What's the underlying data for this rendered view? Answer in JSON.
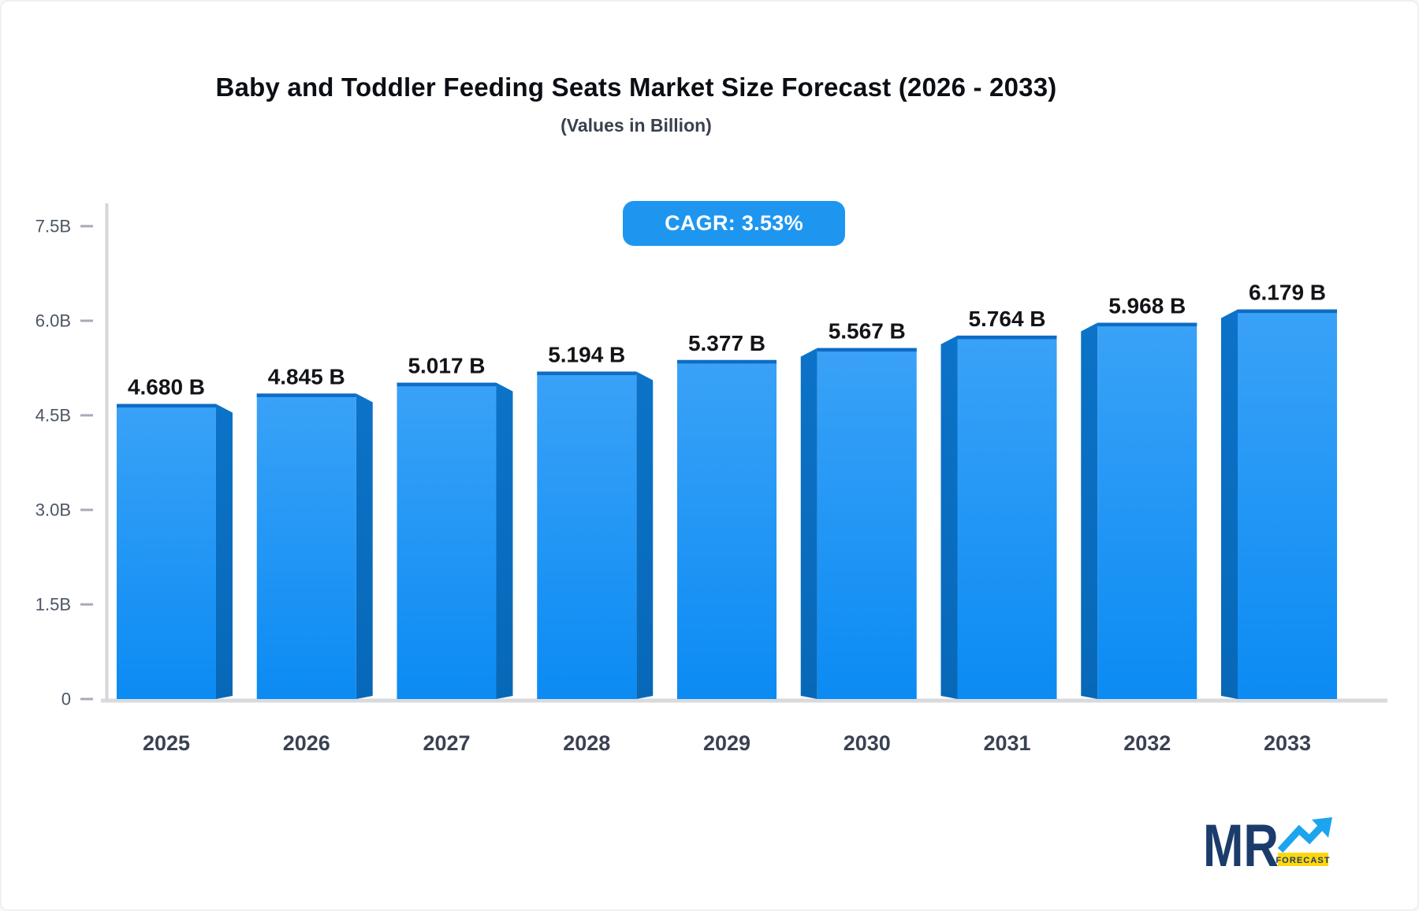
{
  "header": {
    "title": "Baby and Toddler Feeding Seats Market Size Forecast (2026 - 2033)",
    "subtitle": "(Values in Billion)",
    "cagr_badge": "CAGR: 3.53%"
  },
  "chart_data": {
    "type": "bar",
    "title": "Baby and Toddler Feeding Seats Market Size Forecast (2026 - 2033)",
    "subtitle": "(Values in Billion)",
    "cagr_percent": "3.53%",
    "categories": [
      "2025",
      "2026",
      "2027",
      "2028",
      "2029",
      "2030",
      "2031",
      "2032",
      "2033"
    ],
    "values": [
      4.68,
      4.845,
      5.017,
      5.194,
      5.377,
      5.567,
      5.764,
      5.968,
      6.179
    ],
    "value_labels": [
      "4.680 B",
      "4.845 B",
      "5.017 B",
      "5.194 B",
      "5.377 B",
      "5.567 B",
      "5.764 B",
      "5.968 B",
      "6.179 B"
    ],
    "xlabel": "",
    "ylabel": "",
    "ylim": [
      0,
      7.5
    ],
    "yticks": [
      {
        "value": 0.0,
        "label": "0"
      },
      {
        "value": 1.5,
        "label": "1.5B"
      },
      {
        "value": 3.0,
        "label": "3.0B"
      },
      {
        "value": 4.5,
        "label": "4.5B"
      },
      {
        "value": 6.0,
        "label": "6.0B"
      },
      {
        "value": 7.5,
        "label": "7.5B"
      }
    ],
    "grid": false,
    "legend": false,
    "bar_style": "3d-perspective"
  },
  "colors": {
    "badge_bg": "#1e96f0",
    "bar_face_top": "#3aa2f7",
    "bar_face_bottom": "#0b8bf3",
    "bar_side": "#0a6fc2",
    "bar_cap": "#0f6cc4",
    "axis_line": "#d4d6db",
    "baseline": "#d8dade",
    "tick": "#a6abb5",
    "ytick_text": "#4b5563",
    "xtick_text": "#3a4252",
    "value_text": "#121418",
    "logo_navy": "#1b3c6b",
    "logo_blue": "#1da4ee",
    "logo_yellow": "#ffd60b"
  },
  "logo": {
    "text": "MR",
    "sub": "FORECAST"
  }
}
